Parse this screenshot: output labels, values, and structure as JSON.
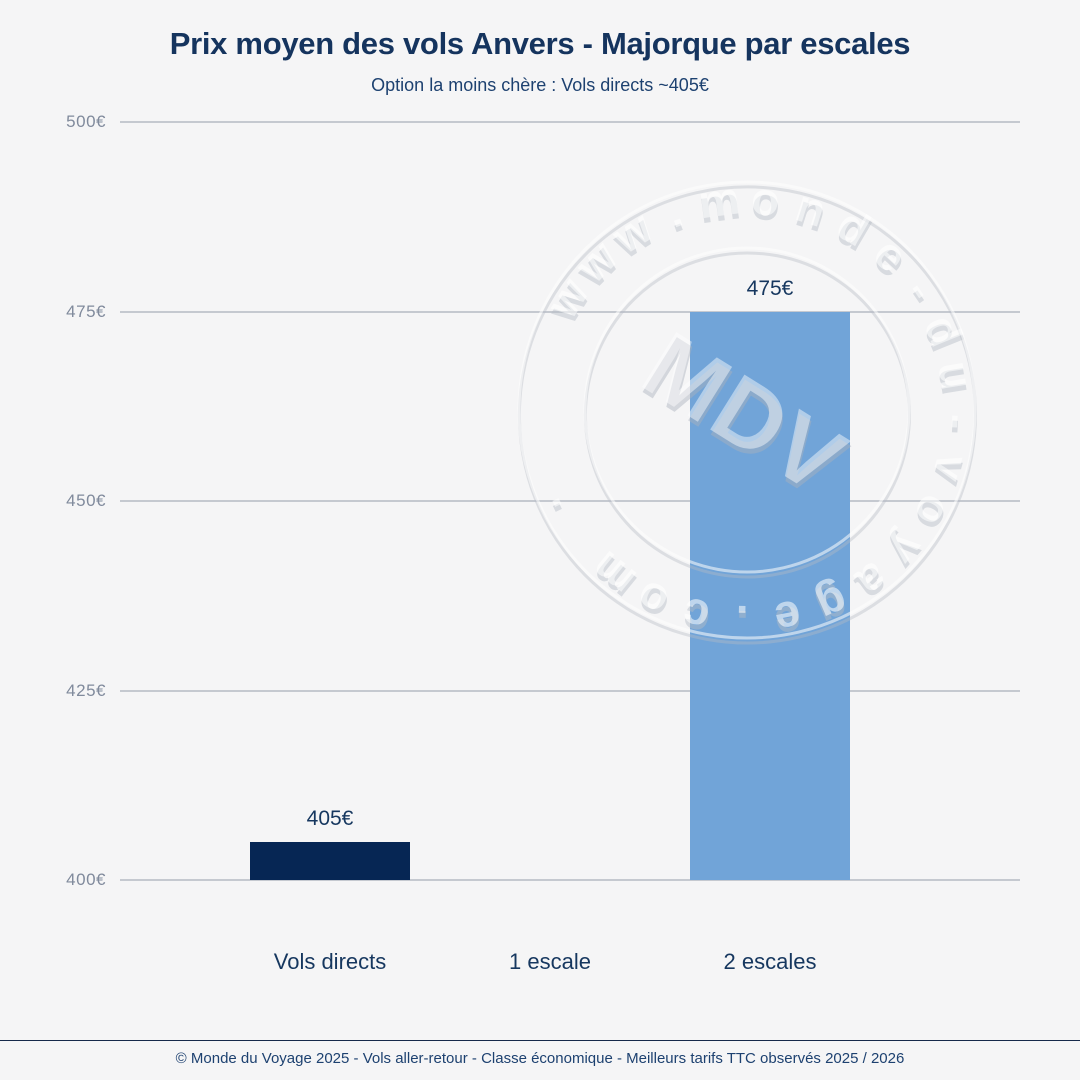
{
  "header": {
    "title": "Prix moyen des vols Anvers - Majorque par escales",
    "subtitle": "Option la moins chère : Vols directs ~405€"
  },
  "chart_data": {
    "type": "bar",
    "title": "Prix moyen des vols Anvers - Majorque par escales",
    "subtitle": "Option la moins chère : Vols directs ~405€",
    "categories": [
      "Vols directs",
      "1 escale",
      "2 escales"
    ],
    "values": [
      405,
      null,
      475
    ],
    "value_labels": [
      "405€",
      "",
      "475€"
    ],
    "bar_colors": [
      "#062654",
      null,
      "#71a4d8"
    ],
    "xlabel": "",
    "ylabel": "",
    "ylim": [
      400,
      500
    ],
    "yticks": [
      400,
      425,
      450,
      475,
      500
    ],
    "ytick_labels": [
      "400€",
      "425€",
      "450€",
      "475€",
      "500€"
    ],
    "grid": true,
    "legend": false,
    "currency": "EUR"
  },
  "watermark": {
    "ring_text": "www.monde-du-voyage.com ·",
    "center_text": "MDV"
  },
  "footer": {
    "text": "© Monde du Voyage 2025 - Vols aller-retour - Classe économique - Meilleurs tarifs TTC observés 2025 / 2026"
  },
  "colors": {
    "background": "#f5f5f6",
    "title": "#15345e",
    "subtitle": "#1d4170",
    "bar_direct": "#062654",
    "bar_two_stops": "#71a4d8",
    "gridline": "#c5c9d0",
    "ytick_label": "#808a9c",
    "xtick_label": "#16375f",
    "value_label": "#16375f",
    "footer_text": "#1d4170",
    "footer_line": "#16294a"
  }
}
